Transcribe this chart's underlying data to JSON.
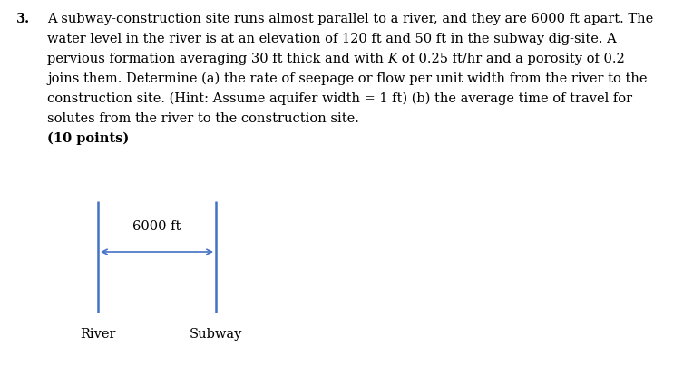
{
  "problem_number": "3.",
  "line0": "A subway-construction site runs almost parallel to a river, and they are 6000 ft apart. The",
  "line1": "water level in the river is at an elevation of 120 ft and 50 ft in the subway dig-site. A",
  "line2_pre": "pervious formation averaging 30 ft thick and with ",
  "line2_K": "K",
  "line2_post": " of 0.25 ft/hr and a porosity of 0.2",
  "line3": "joins them. Determine (a) the rate of seepage or flow per unit width from the river to the",
  "line4": "construction site. (Hint: Assume aquifer width = 1 ft) (b) the average time of travel for",
  "line5": "solutes from the river to the construction site.",
  "bold_line": "(10 points)",
  "diagram_label": "6000 ft",
  "left_label": "River",
  "right_label": "Subway",
  "line_color": "#4472C4",
  "text_color": "#000000",
  "label_color": "#000000",
  "bg_color": "#ffffff",
  "font_size_text": 10.5,
  "font_size_bold": 10.5,
  "font_size_diagram": 10.5
}
